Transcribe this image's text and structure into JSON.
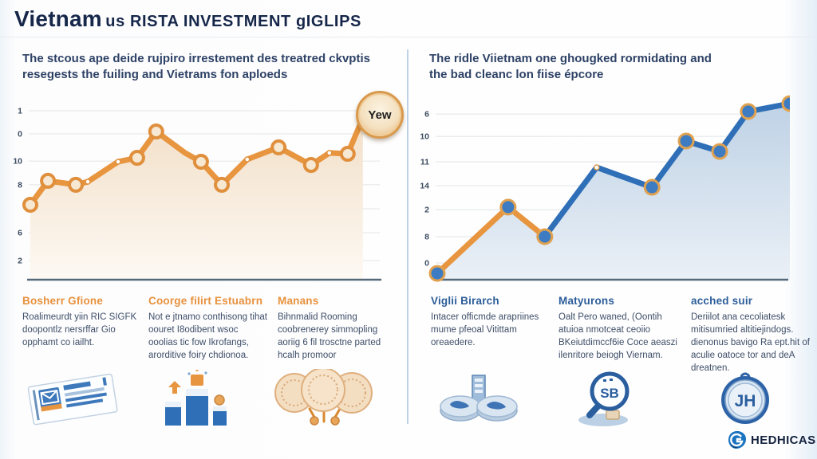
{
  "page": {
    "title_brand": "Vietnam",
    "title_rest": "us RISTA INVESTMENT gIGLIPS",
    "logo_text": "HEDHICAS"
  },
  "left_panel": {
    "subtitle_line1": "The stcous ape deide rujpiro irrestement des treatred ckvptis",
    "subtitle_line2": "resegests the fuiling and Vietrams fon aploeds",
    "badge_label": "Yew",
    "sections": [
      {
        "header": "Bosherr Gfione",
        "body": "Roalimeurdt yiin RIC SIGFK doopontlz nersrffar Gio opphamt co iailht."
      },
      {
        "header": "Coorge fiIirt Estuabrn",
        "body": "Not e jtnamo conthisong tihat oouret I8odibent wsoc ooolias tic fow Ikrofangs, arorditive foiry chdionoa."
      },
      {
        "header": "Manans",
        "body": "Bihnmalid Rooming coobrenerey simmopling aoriig 6 fil trosctne parted hcalh promoor"
      }
    ]
  },
  "right_panel": {
    "subtitle_line1": "The ridle Viietnam one ghougked rormidating and",
    "subtitle_line2": "the bad cleanc lon fiise épcore",
    "magnifier_label": "SB",
    "coin_glyph": "JH",
    "sections": [
      {
        "header": "Viglii Birarch",
        "body": "Intacer officmde arapriines mume pfeoal Vitittam oreaedere."
      },
      {
        "header": "Matyurons",
        "body": "Oalt Pero waned, (Oontih atuioa nmotceat ceoiio BKeiutdimccf6ie Coce aeaszi ilenritore beiogh Viernam."
      },
      {
        "header": "acched suir",
        "body": "Deriilot ana cecoliatesk mitisumried altitiejindogs. dienonus bavigo Ra ept.hit of aculie oatoce tor and deA dreatnen."
      }
    ]
  },
  "chart_data": [
    {
      "id": "left",
      "type": "area",
      "title": "Left trend panel (orange investment line)",
      "legend": [],
      "grid": true,
      "line_color": "#E8953F",
      "fill_top": "#F2DFC8",
      "fill_bottom": "#FDF9F3",
      "axis_color": "#56697B",
      "grid_color": "#E4E6E3",
      "tick_color": "#3C4C60",
      "marker_ring": "#E08F3C",
      "marker_fill": "#F6E8D2",
      "marker_r": 8,
      "marker_ring_w": 4,
      "y_ticks": [
        {
          "label": "1",
          "pos": 6.2
        },
        {
          "label": "0",
          "pos": 19.0
        },
        {
          "label": "10",
          "pos": 34.1
        },
        {
          "label": "8",
          "pos": 47.3
        },
        {
          "label": "6",
          "pos": 73.9
        },
        {
          "label": "2",
          "pos": 89.4
        }
      ],
      "gridlines": [
        6.2,
        19.0,
        34.1,
        47.3,
        60.6,
        73.9,
        89.4
      ],
      "points": [
        [
          0,
          41.6
        ],
        [
          5.0,
          54.9
        ],
        [
          12.9,
          52.7
        ],
        [
          16.3,
          54.4
        ],
        [
          24.9,
          65.5
        ],
        [
          30.3,
          67.7
        ],
        [
          35.7,
          82.3
        ],
        [
          43.9,
          70.4
        ],
        [
          48.4,
          65.5
        ],
        [
          54.3,
          52.7
        ],
        [
          61.5,
          66.8
        ],
        [
          70.4,
          73.5
        ],
        [
          79.6,
          63.7
        ],
        [
          84.8,
          70.4
        ],
        [
          90.0,
          69.9
        ],
        [
          94.3,
          89.8
        ]
      ],
      "segments": [
        {
          "color": "#E8953F",
          "from": 0,
          "to": 15
        }
      ],
      "markers_large": [
        0,
        1,
        2,
        5,
        6,
        8,
        9,
        11,
        12,
        14
      ],
      "markers_small": [
        3,
        4,
        10,
        13
      ]
    },
    {
      "id": "right",
      "type": "area",
      "title": "Right trend panel (orange-to-blue rising line)",
      "legend": [],
      "grid": true,
      "line_color": "#2E6FB7",
      "fill_top": "#BFD2E6",
      "fill_bottom": "#EAF0F6",
      "axis_color": "#56697B",
      "grid_color": "#E0E4E6",
      "tick_color": "#3C4C60",
      "marker_ring": "#E0A14F",
      "marker_fill": "#3D7CC2",
      "marker_r": 9,
      "marker_ring_w": 3,
      "y_ticks": [
        {
          "label": "6",
          "pos": 8.0
        },
        {
          "label": "10",
          "pos": 20.4
        },
        {
          "label": "11",
          "pos": 34.5
        },
        {
          "label": "14",
          "pos": 47.8
        },
        {
          "label": "2",
          "pos": 61.1
        },
        {
          "label": "8",
          "pos": 76.1
        },
        {
          "label": "0",
          "pos": 90.7
        }
      ],
      "gridlines": [
        8.0,
        20.4,
        34.5,
        47.8,
        61.1,
        76.1,
        90.7
      ],
      "points": [
        [
          0,
          3.5
        ],
        [
          20.1,
          40.3
        ],
        [
          30.5,
          23.9
        ],
        [
          45.2,
          62.4
        ],
        [
          60.9,
          51.3
        ],
        [
          70.6,
          77.0
        ],
        [
          80.1,
          71.2
        ],
        [
          88.2,
          93.4
        ],
        [
          100,
          97.8
        ]
      ],
      "segments": [
        {
          "color": "#E8953F",
          "from": 0,
          "to": 2
        },
        {
          "color": "#2E6FB7",
          "from": 2,
          "to": 8
        }
      ],
      "markers_large": [
        0,
        1,
        2,
        4,
        5,
        6,
        7,
        8
      ],
      "markers_small": [
        3
      ]
    }
  ]
}
